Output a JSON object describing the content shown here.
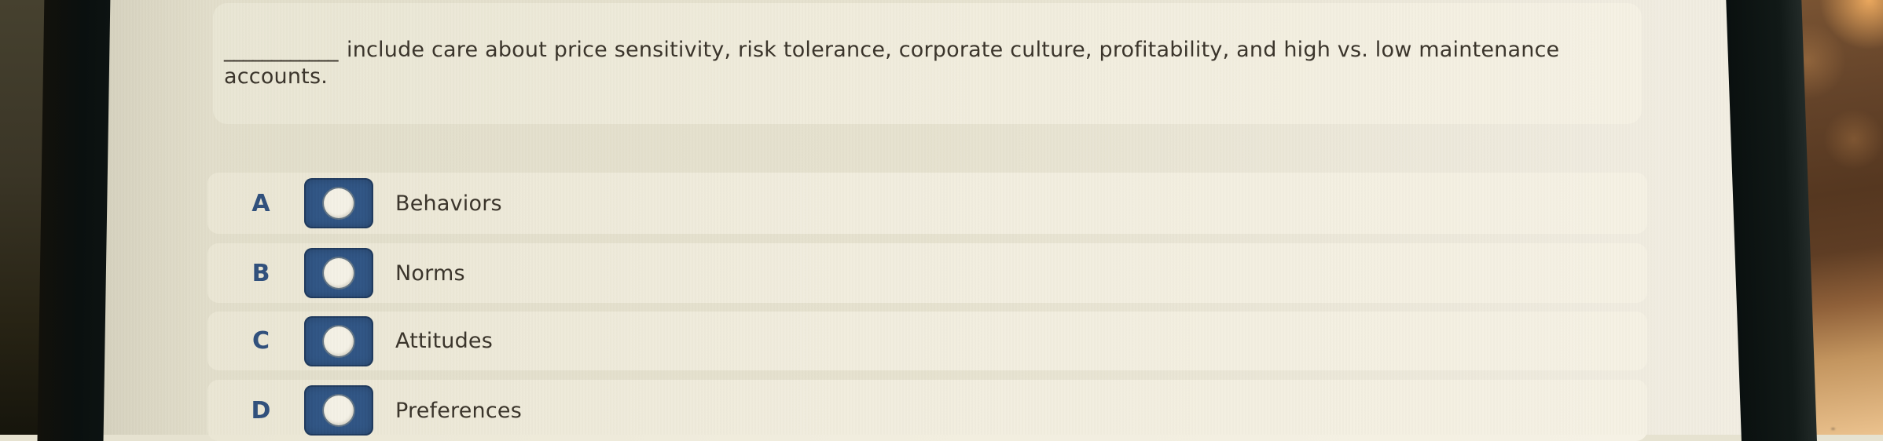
{
  "question": {
    "blank": "____________",
    "text": "include care about price sensitivity, risk tolerance, corporate culture, profitability, and high vs. low maintenance accounts."
  },
  "options": [
    {
      "letter": "A",
      "label": "Behaviors"
    },
    {
      "letter": "B",
      "label": "Norms"
    },
    {
      "letter": "C",
      "label": "Attitudes"
    },
    {
      "letter": "D",
      "label": "Preferences"
    }
  ],
  "icons": {
    "radio": "radio-button-unselected"
  },
  "colors": {
    "radio_blue": "#2f5484",
    "letter_navy": "#2f4f7c",
    "text": "#39332a",
    "card_background": "#f0ecdc",
    "screen_background": "#e6e2cf"
  }
}
